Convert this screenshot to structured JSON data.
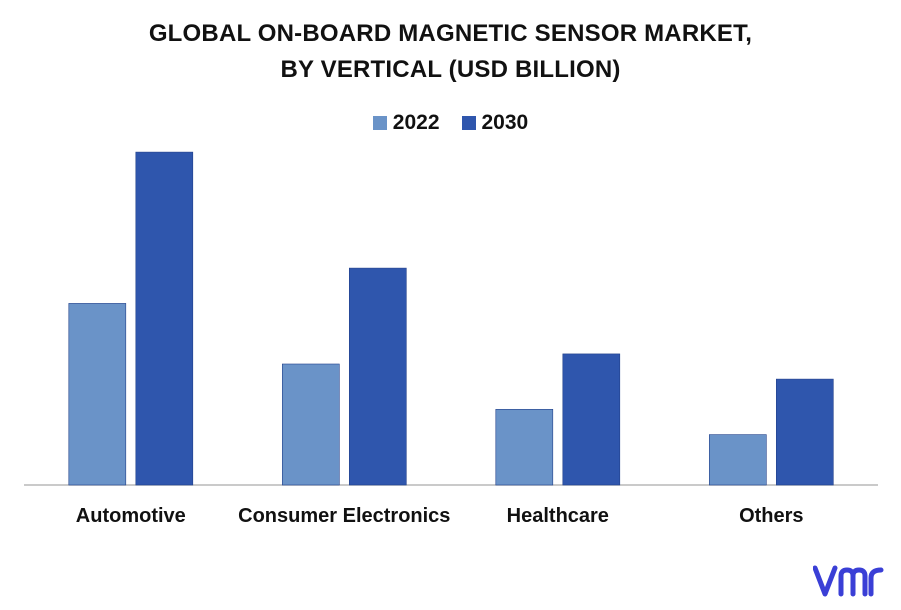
{
  "chart_data": {
    "type": "bar",
    "title": "GLOBAL ON-BOARD MAGNETIC SENSOR MARKET,",
    "subtitle": "BY VERTICAL (USD BILLION)",
    "categories": [
      "Automotive",
      "Consumer Electronics",
      "Healthcare",
      "Others"
    ],
    "series": [
      {
        "name": "2022",
        "values": [
          3.6,
          2.4,
          1.5,
          1.0
        ],
        "color": "#6a93c8"
      },
      {
        "name": "2030",
        "values": [
          6.6,
          4.3,
          2.6,
          2.1
        ],
        "color": "#2f56ad"
      }
    ],
    "ylim": [
      0,
      6.9
    ],
    "grid": false,
    "legend_position": "top-center"
  },
  "brand": {
    "logo_icon": "vmr-logo-icon",
    "logo_color": "#3a3fd6"
  }
}
